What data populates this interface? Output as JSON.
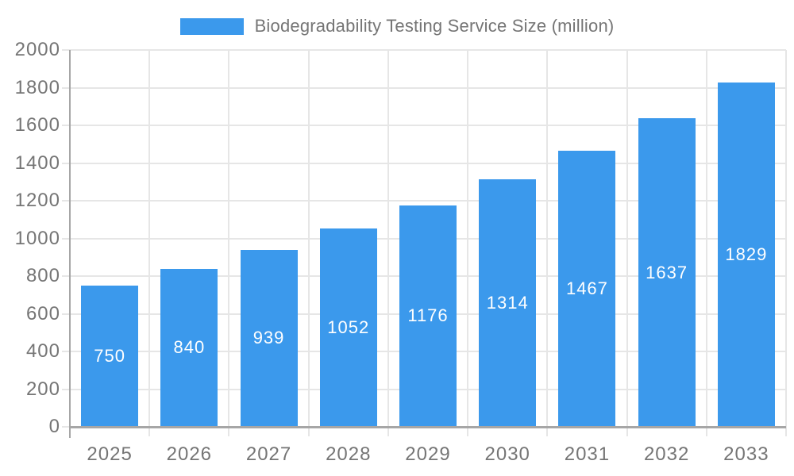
{
  "chart_data": {
    "type": "bar",
    "title": "Biodegradability Testing Service Size (million)",
    "categories": [
      "2025",
      "2026",
      "2027",
      "2028",
      "2029",
      "2030",
      "2031",
      "2032",
      "2033"
    ],
    "values": [
      750,
      840,
      939,
      1052,
      1176,
      1314,
      1467,
      1637,
      1829
    ],
    "value_labels": [
      "750",
      "840",
      "939",
      "1052",
      "1176",
      "1314",
      "1467",
      "1637",
      "1829"
    ],
    "xlabel": "",
    "ylabel": "",
    "ylim": [
      0,
      2000
    ],
    "yticks": [
      0,
      200,
      400,
      600,
      800,
      1000,
      1200,
      1400,
      1600,
      1800,
      2000
    ],
    "grid": true,
    "legend_position": "top-center",
    "colors": {
      "bar": "#3B99EC",
      "value_label": "#FFFFFF",
      "axis_text": "#757575",
      "gridline": "#E6E6E6",
      "axis_line": "#A6A6A6",
      "background": "#FFFFFF"
    }
  }
}
